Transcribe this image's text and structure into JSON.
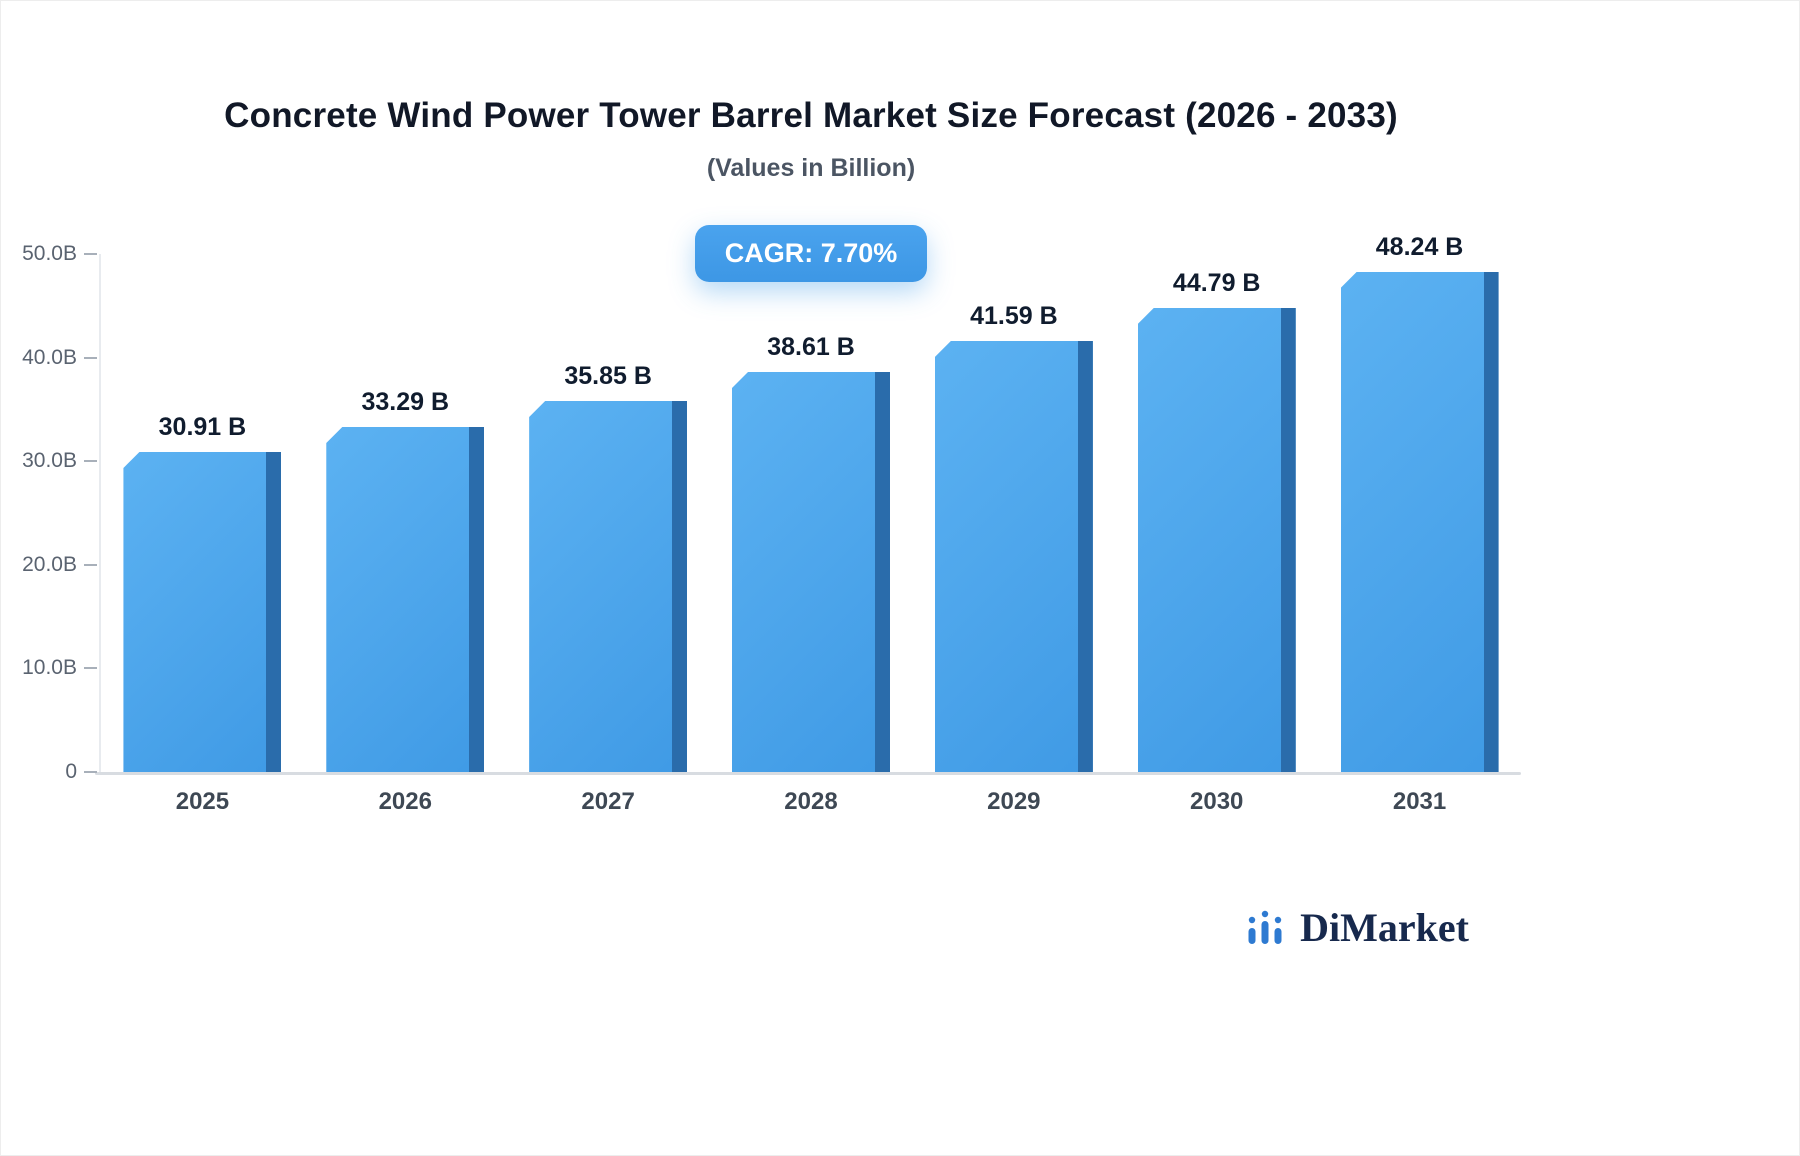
{
  "header": {
    "title": "Concrete Wind Power Tower Barrel Market Size Forecast (2026 - 2033)",
    "subtitle": "(Values in Billion)",
    "cagr_badge": "CAGR: 7.70%"
  },
  "chart_data": {
    "type": "bar",
    "categories": [
      "2025",
      "2026",
      "2027",
      "2028",
      "2029",
      "2030",
      "2031"
    ],
    "values": [
      30.91,
      33.29,
      35.85,
      38.61,
      41.59,
      44.79,
      48.24
    ],
    "bar_labels": [
      "30.91 B",
      "33.29 B",
      "35.85 B",
      "38.61 B",
      "41.59 B",
      "44.79 B",
      "48.24 B"
    ],
    "title": "Concrete Wind Power Tower Barrel Market Size Forecast (2026 - 2033)",
    "xlabel": "",
    "ylabel": "",
    "ylim": [
      0,
      50
    ],
    "ytick_labels": [
      "0",
      "10.0B",
      "20.0B",
      "30.0B",
      "40.0B",
      "50.0B"
    ],
    "grid": false,
    "legend": false,
    "colors": {
      "bar_face": "#3f9ae5",
      "bar_face_light": "#5cb2f2",
      "bar_side": "#2a6cab",
      "axis": "#d8dce1",
      "tick_text": "#5a6370",
      "category_text": "#3e4854",
      "value_text": "#101c2e",
      "badge_bg": "#3f9ae8",
      "badge_text": "#ffffff"
    }
  },
  "footer": {
    "brand": "DiMarket"
  }
}
